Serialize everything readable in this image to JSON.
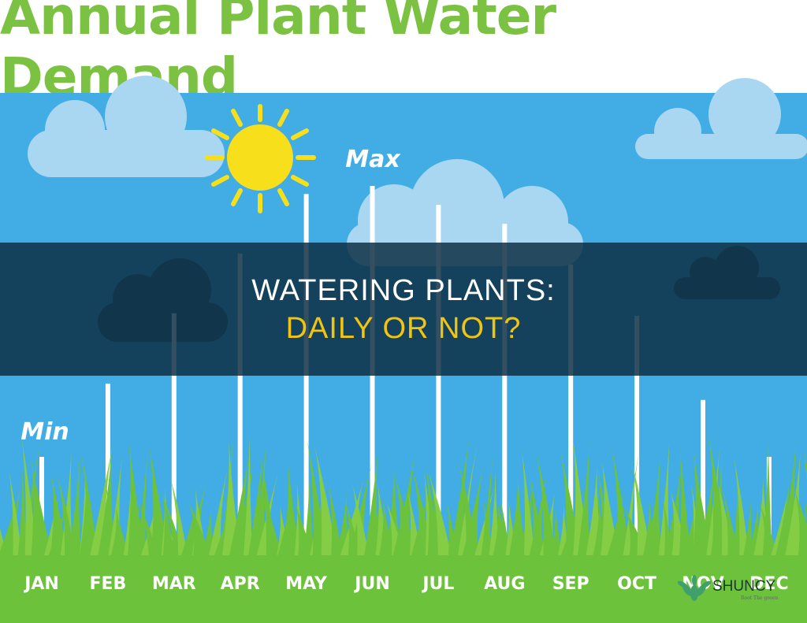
{
  "title": "Annual Plant Water Demand",
  "overlay": {
    "line1": "WATERING PLANTS:",
    "line2": "DAILY OR NOT?"
  },
  "brand": {
    "name": "SHUNCY",
    "tagline": "Root The green"
  },
  "icons": {
    "sun": "sun-icon",
    "cloud": "cloud-icon",
    "brand": "plant-leaf-icon"
  },
  "colors": {
    "title": "#7cc242",
    "sky": "#41ade4",
    "grass": "#6cc23a",
    "bar": "#ffffff",
    "overlay_text_2": "#f1c40f"
  },
  "chart_data": {
    "type": "bar",
    "title": "Annual Plant Water Demand",
    "categories": [
      "JAN",
      "FEB",
      "MAR",
      "APR",
      "MAY",
      "JUN",
      "JUL",
      "AUG",
      "SEP",
      "OCT",
      "NOV",
      "DEC"
    ],
    "values": [
      0.0,
      0.27,
      0.53,
      0.75,
      0.97,
      1.0,
      0.93,
      0.86,
      0.71,
      0.52,
      0.21,
      0.0
    ],
    "scale_labels": {
      "min": "Min",
      "max": "Max"
    },
    "ylim": [
      0,
      1
    ],
    "grid": false,
    "legend": "none"
  }
}
